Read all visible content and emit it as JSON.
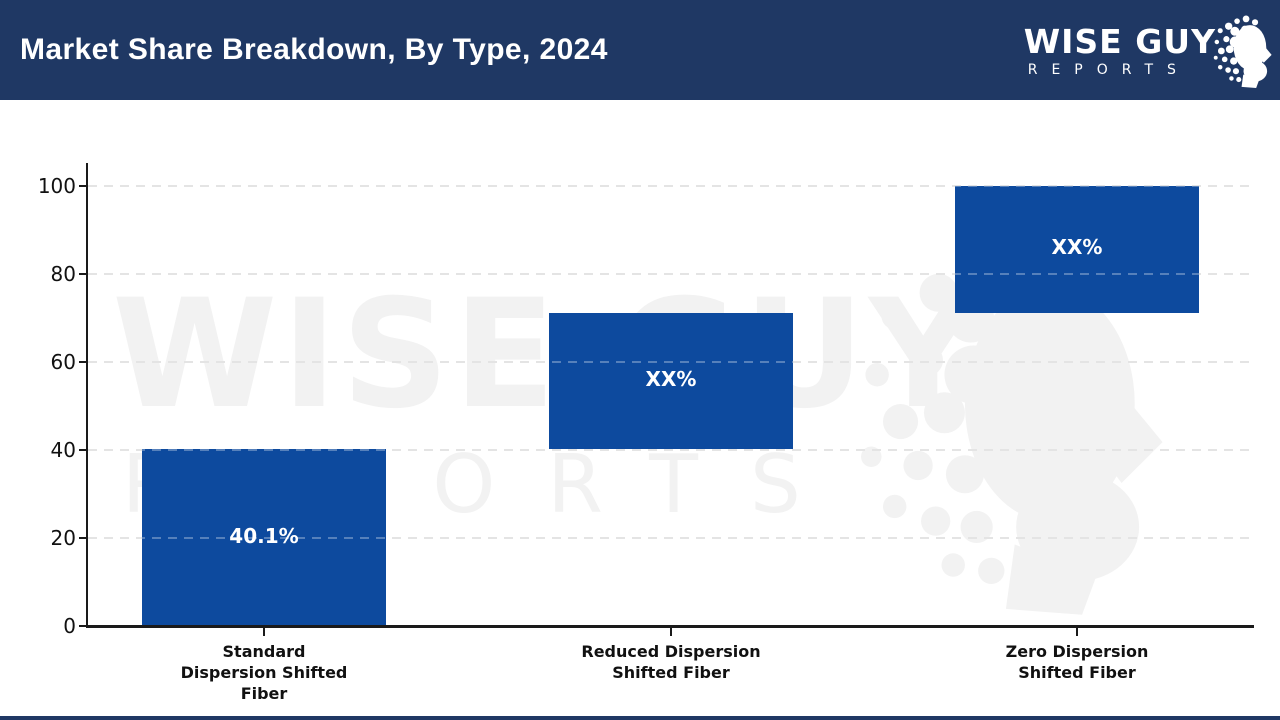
{
  "header": {
    "title": "Market Share Breakdown, By Type, 2024",
    "logo": {
      "name": "WISE GUY",
      "sub": "REPORTS"
    }
  },
  "watermark": {
    "line1": "WISE GUY",
    "line2": "REPORTS"
  },
  "colors": {
    "header_bg": "#1f3864",
    "footer_bg": "#1f3864",
    "bar": "#0d4a9e",
    "grid": "#d9d9d9",
    "axis": "#1a1a1a",
    "tick_text": "#111111",
    "bar_label_text": "#ffffff",
    "watermark": "#f2f2f2"
  },
  "icons": {
    "brand_face": "dotted-profile-face",
    "watermark_face": "dotted-profile-face"
  },
  "chart_data": {
    "type": "bar",
    "variant": "floating-segment-waterfall",
    "title": "Market Share Breakdown, By Type, 2024",
    "categories": [
      "Standard Dispersion Shifted Fiber",
      "Reduced Dispersion Shifted Fiber",
      "Zero Dispersion Shifted Fiber"
    ],
    "category_lines": [
      [
        "Standard",
        "Dispersion Shifted",
        "Fiber"
      ],
      [
        "Reduced Dispersion",
        "Shifted Fiber"
      ],
      [
        "Zero Dispersion",
        "Shifted Fiber"
      ]
    ],
    "segments": [
      {
        "category": "Standard Dispersion Shifted Fiber",
        "start": 0,
        "end": 40.1,
        "label": "40.1%"
      },
      {
        "category": "Reduced Dispersion Shifted Fiber",
        "start": 40.1,
        "end": 71,
        "label": "XX%"
      },
      {
        "category": "Zero Dispersion Shifted Fiber",
        "start": 71,
        "end": 100,
        "label": "XX%"
      }
    ],
    "ylabel": "",
    "xlabel": "",
    "yticks": [
      0,
      20,
      40,
      60,
      80,
      100
    ],
    "ylim": [
      0,
      105
    ],
    "grid": {
      "axis": "y",
      "style": "dashed"
    },
    "legend": "none"
  }
}
